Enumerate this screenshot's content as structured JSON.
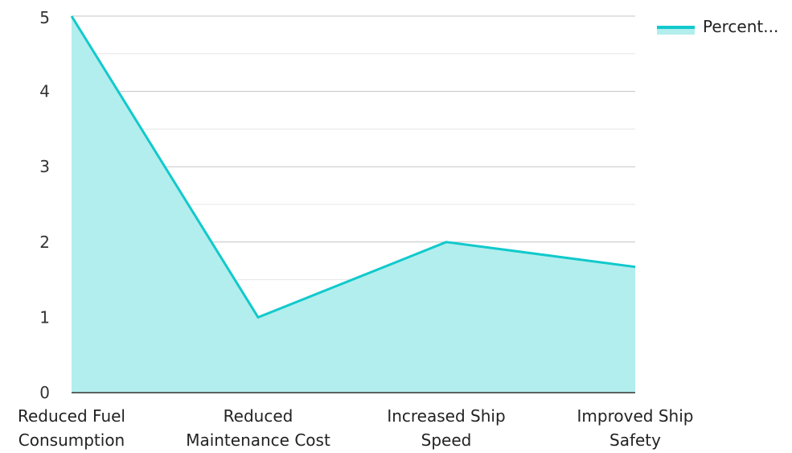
{
  "chart_data": {
    "type": "area",
    "categories": [
      [
        "Reduced Fuel",
        "Consumption"
      ],
      [
        "Reduced",
        "Maintenance Cost"
      ],
      [
        "Increased Ship",
        "Speed"
      ],
      [
        "Improved Ship",
        "Safety"
      ]
    ],
    "series": [
      {
        "name": "Percent...",
        "values": [
          5,
          1,
          2,
          1.67
        ]
      }
    ],
    "yticks": [
      "0",
      "1",
      "2",
      "3",
      "4",
      "5"
    ],
    "ylim": [
      0,
      5
    ],
    "grid": true,
    "legend": "top-right",
    "colors": {
      "line": "#11C9CC",
      "fill": "#B2EEED",
      "grid_major": "#C4C4C4",
      "grid_minor": "#E6E6E6",
      "axis": "#333333"
    }
  }
}
